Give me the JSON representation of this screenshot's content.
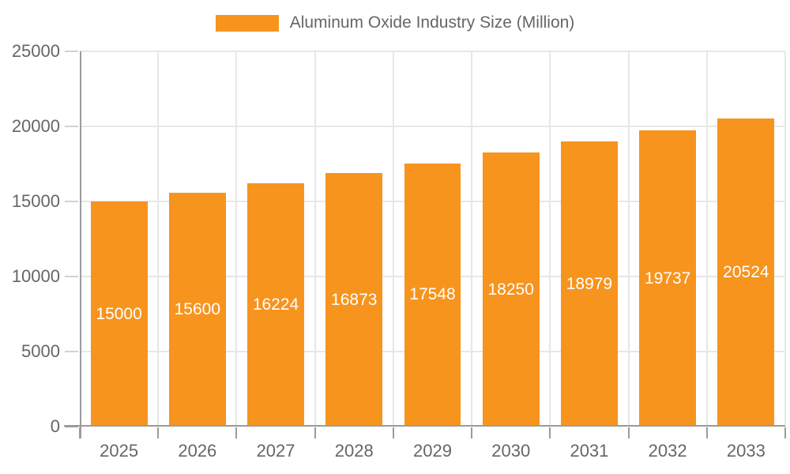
{
  "chart_data": {
    "type": "bar",
    "title": "Aluminum Oxide Industry Size (Million)",
    "legend_label": "Aluminum Oxide Industry Size (Million)",
    "legend_position": "top-center",
    "categories": [
      "2025",
      "2026",
      "2027",
      "2028",
      "2029",
      "2030",
      "2031",
      "2032",
      "2033"
    ],
    "series": [
      {
        "name": "Aluminum Oxide Industry Size (Million)",
        "values": [
          15000,
          15600,
          16224,
          16873,
          17548,
          18250,
          18979,
          19737,
          20524
        ]
      }
    ],
    "value_labels": [
      "15000",
      "15600",
      "16224",
      "16873",
      "17548",
      "18250",
      "18979",
      "19737",
      "20524"
    ],
    "xlabel": "",
    "ylabel": "",
    "ylim": [
      0,
      25000
    ],
    "yticks": [
      0,
      5000,
      10000,
      15000,
      20000,
      25000
    ],
    "grid": true,
    "colors": {
      "bar": "#F7941E",
      "value_label": "#FFFFFF",
      "grid_line": "#E7E7E7",
      "axis_line": "#9B9B9B",
      "tick_mark": "#D2D2D2",
      "tick_label_text": "#666666",
      "legend_text": "#666666",
      "background": "#FFFFFF"
    }
  }
}
